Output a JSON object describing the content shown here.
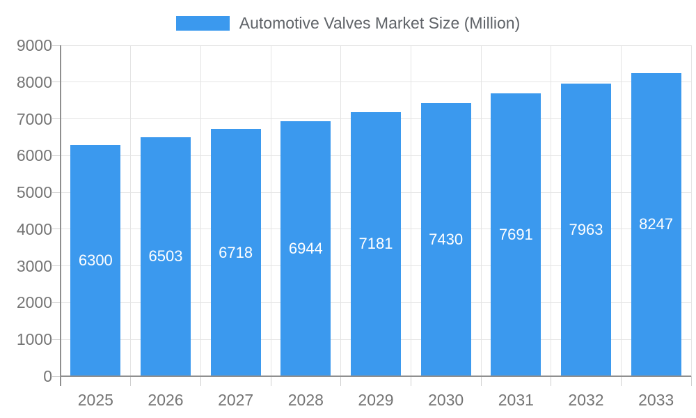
{
  "legend": {
    "label": "Automotive Valves Market Size (Million)"
  },
  "chart_data": {
    "type": "bar",
    "title": "Automotive Valves Market Size (Million)",
    "categories": [
      "2025",
      "2026",
      "2027",
      "2028",
      "2029",
      "2030",
      "2031",
      "2032",
      "2033"
    ],
    "values": [
      6300,
      6503,
      6718,
      6944,
      7181,
      7430,
      7691,
      7963,
      8247
    ],
    "xlabel": "",
    "ylabel": "",
    "ylim": [
      0,
      9000
    ],
    "ytick_step": 1000,
    "grid": true,
    "legend_position": "top",
    "bar_labels_inside": true
  },
  "colors": {
    "bar": "#3B99EE",
    "bar_label": "#FFFFFF",
    "grid_line": "#E4E4E4",
    "tick": "#CFCFCF",
    "axis_line": "#8F8F8F",
    "axis_label": "#757575",
    "title": "#5F6368",
    "background": "#FFFFFF"
  }
}
